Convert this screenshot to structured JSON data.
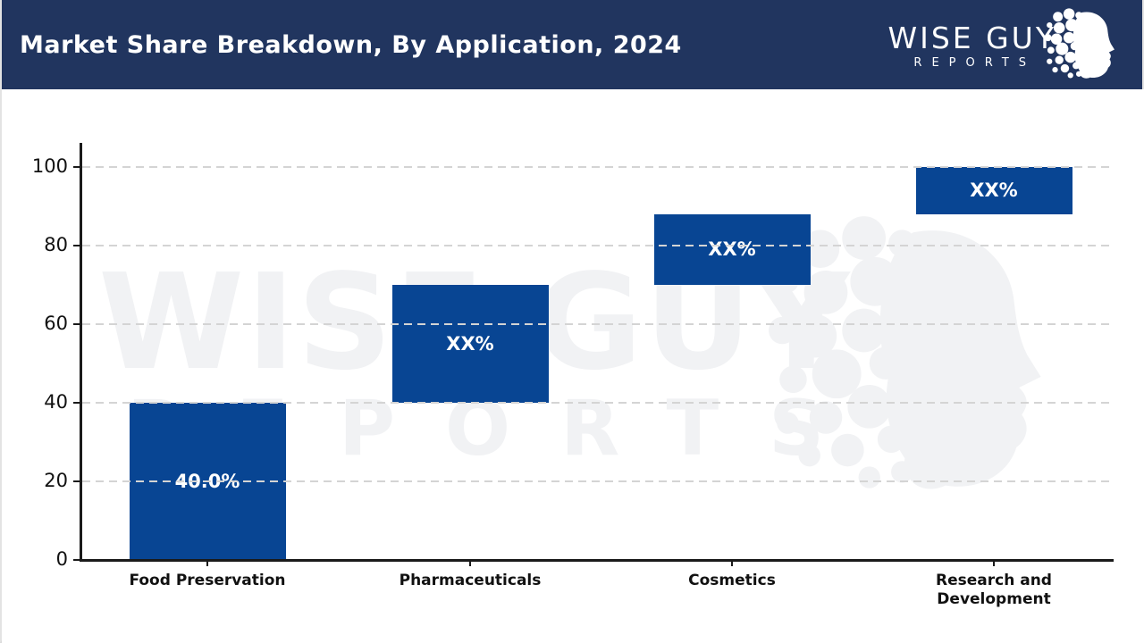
{
  "header": {
    "title": "Market Share Breakdown, By Application, 2024",
    "logo_primary": "WISE GUY",
    "logo_secondary": "REPORTS"
  },
  "watermark": {
    "line1": "WISE GUY",
    "line2": "REPORTS"
  },
  "colors": {
    "header_bg": "#21355f",
    "bar": "#084593",
    "bar_label": "#ffffff",
    "gridline": "#d4d4d4",
    "axis": "#1a1a1a",
    "watermark": "#f1f2f4"
  },
  "chart_data": {
    "type": "bar",
    "subtype": "waterfall",
    "title": "Market Share Breakdown, By Application, 2024",
    "categories": [
      "Food Preservation",
      "Pharmaceuticals",
      "Cosmetics",
      "Research and Development"
    ],
    "segments": [
      {
        "category": "Food Preservation",
        "start": 0,
        "end": 40,
        "value": 40,
        "label": "40.0%"
      },
      {
        "category": "Pharmaceuticals",
        "start": 40,
        "end": 70,
        "value": 30,
        "label": "XX%"
      },
      {
        "category": "Cosmetics",
        "start": 70,
        "end": 88,
        "value": 18,
        "label": "XX%"
      },
      {
        "category": "Research and Development",
        "start": 88,
        "end": 100,
        "value": 12,
        "label": "XX%"
      }
    ],
    "yticks": [
      0,
      20,
      40,
      60,
      80,
      100
    ],
    "ylim": [
      0,
      105
    ],
    "xlabel": "",
    "ylabel": "",
    "grid": "horizontal-dashed",
    "legend": false
  }
}
